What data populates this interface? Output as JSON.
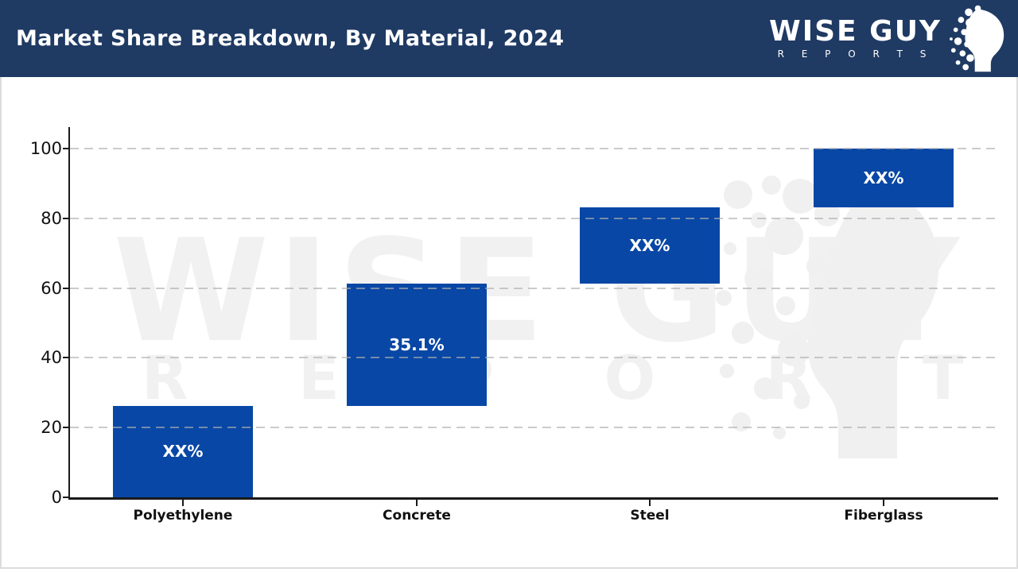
{
  "header": {
    "title": "Market Share Breakdown, By Material, 2024",
    "logo": {
      "line1": "WISE GUY",
      "line2": "R E P O R T S"
    }
  },
  "watermark": {
    "line1": "WISE GUY",
    "line2": "R E P O R T S"
  },
  "chart_data": {
    "type": "bar",
    "subtype": "waterfall",
    "title": "Market Share Breakdown, By Material, 2024",
    "categories": [
      "Polyethylene",
      "Concrete",
      "Steel",
      "Fiberglass"
    ],
    "bars": [
      {
        "category": "Polyethylene",
        "start": 0,
        "end": 26.2,
        "value": 26.2,
        "label": "XX%"
      },
      {
        "category": "Concrete",
        "start": 26.2,
        "end": 61.3,
        "value": 35.1,
        "label": "35.1%"
      },
      {
        "category": "Steel",
        "start": 61.3,
        "end": 83.2,
        "value": 21.9,
        "label": "XX%"
      },
      {
        "category": "Fiberglass",
        "start": 83.2,
        "end": 100.1,
        "value": 16.9,
        "label": "XX%"
      }
    ],
    "xlabel": "",
    "ylabel": "",
    "yticks": [
      0,
      20,
      40,
      60,
      80,
      100
    ],
    "ylim": [
      0,
      106
    ],
    "grid": "dashed-horizontal",
    "legend": "none"
  },
  "colors": {
    "header_bg": "#1f3a63",
    "header_text": "#ffffff",
    "bar": "#0847a5",
    "bar_label": "#ffffff",
    "axis": "#1a1a1a",
    "watermark": "#f1f1f1",
    "frame_border": "#dcdcdc"
  }
}
